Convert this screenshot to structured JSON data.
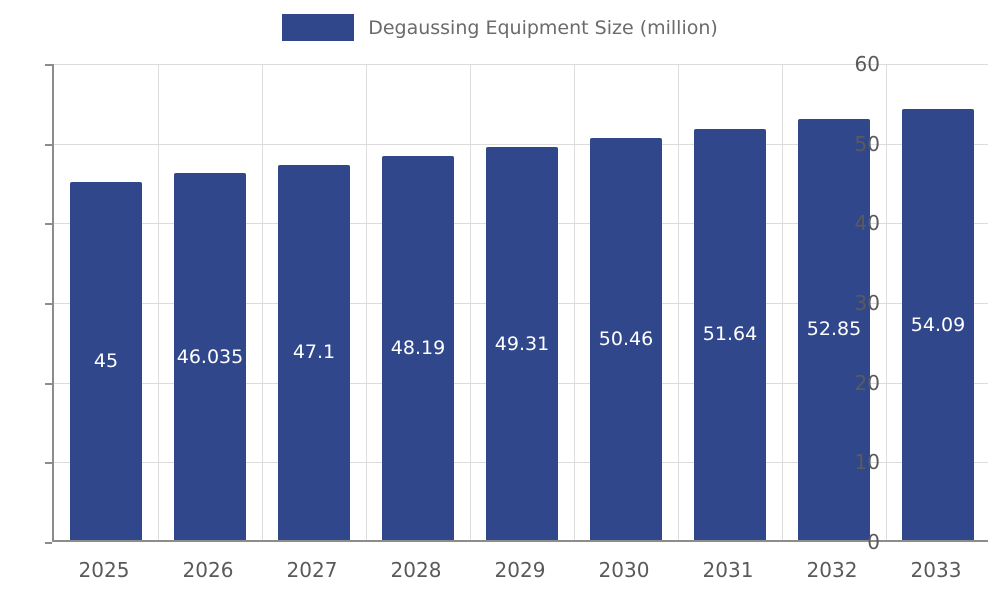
{
  "chart_data": {
    "type": "bar",
    "title": "Degaussing Equipment Size (million)",
    "categories": [
      "2025",
      "2026",
      "2027",
      "2028",
      "2029",
      "2030",
      "2031",
      "2032",
      "2033"
    ],
    "values": [
      45,
      46.035,
      47.1,
      48.19,
      49.31,
      50.46,
      51.64,
      52.85,
      54.09
    ],
    "value_labels": [
      "45",
      "46.035",
      "47.1",
      "48.19",
      "49.31",
      "50.46",
      "51.64",
      "52.85",
      "54.09"
    ],
    "xlabel": "",
    "ylabel": "",
    "ylim": [
      0,
      60
    ],
    "y_ticks": [
      0,
      10,
      20,
      30,
      40,
      50,
      60
    ],
    "grid": "on",
    "legend_position": "top-center",
    "bar_color": "#31478B",
    "label_color": "#ffffff",
    "axis_text_color": "#5a5a5a"
  }
}
